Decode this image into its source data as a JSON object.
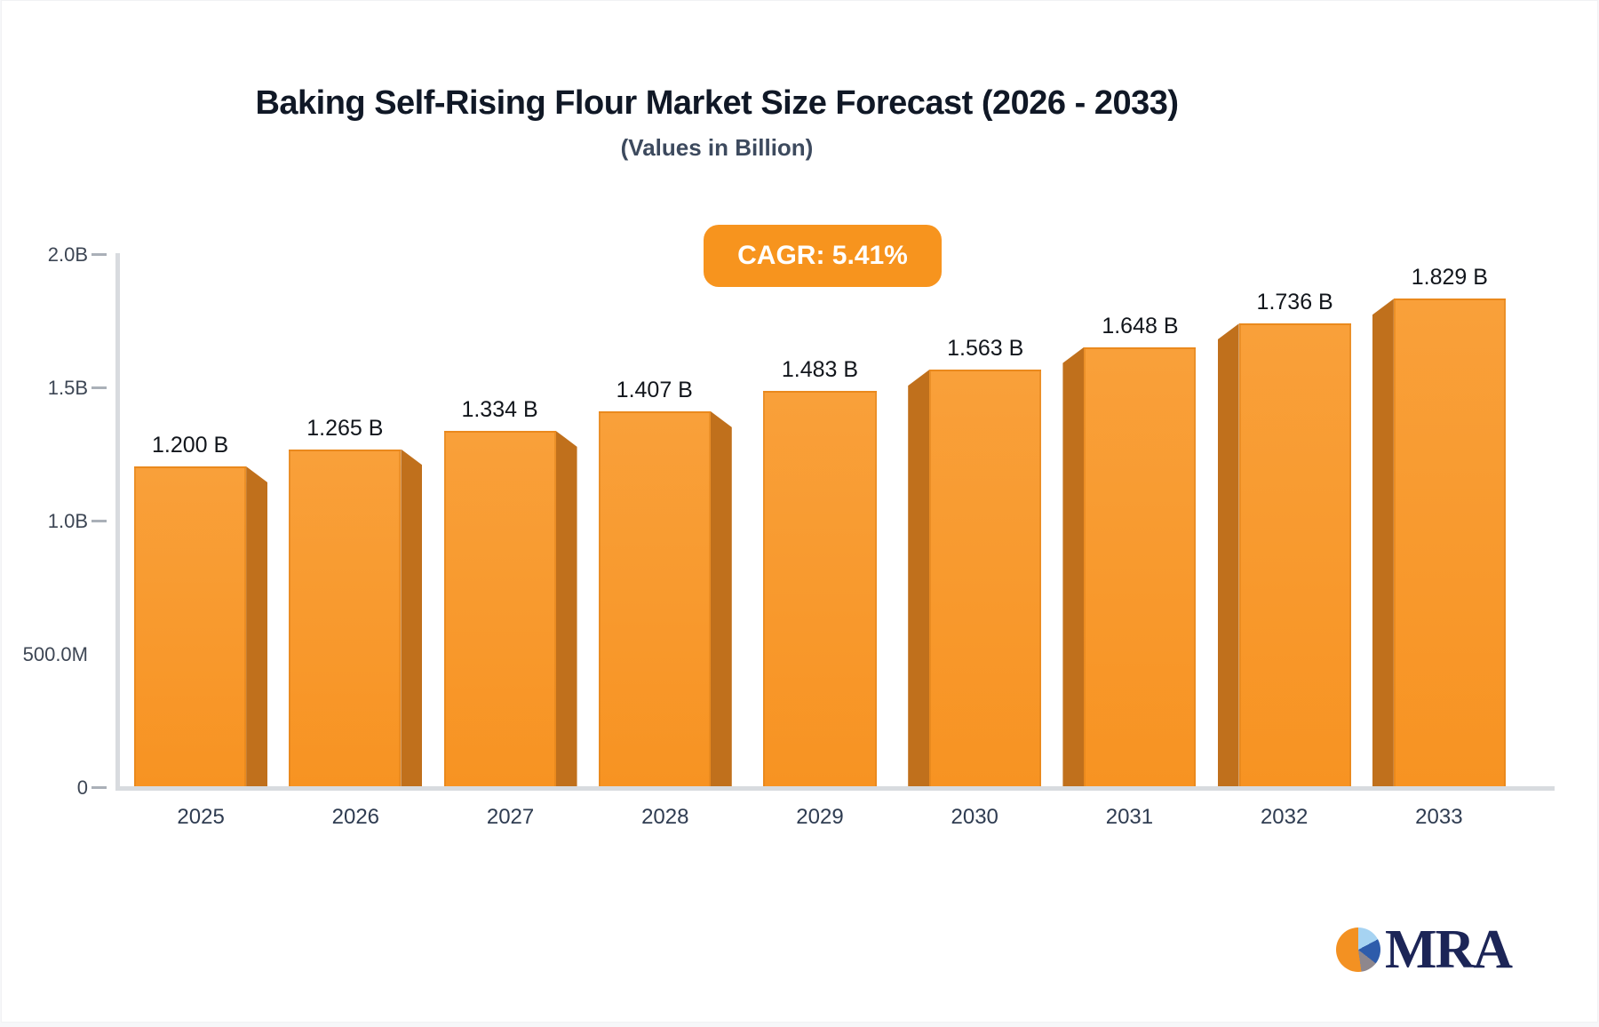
{
  "header": {
    "title": "Baking Self-Rising Flour Market Size Forecast (2026 - 2033)",
    "subtitle": "(Values in Billion)",
    "cagr_badge": "CAGR: 5.41%"
  },
  "chart_data": {
    "type": "bar",
    "title": "Baking Self-Rising Flour Market Size Forecast (2026 - 2033)",
    "subtitle": "(Values in Billion)",
    "cagr_percent": 5.41,
    "categories": [
      "2025",
      "2026",
      "2027",
      "2028",
      "2029",
      "2030",
      "2031",
      "2032",
      "2033"
    ],
    "values": [
      1.2,
      1.265,
      1.334,
      1.407,
      1.483,
      1.563,
      1.648,
      1.736,
      1.829
    ],
    "value_labels": [
      "1.200 B",
      "1.265 B",
      "1.334 B",
      "1.407 B",
      "1.483 B",
      "1.563 B",
      "1.648 B",
      "1.736 B",
      "1.829 B"
    ],
    "xlabel": "",
    "ylabel": "",
    "ylim": [
      0,
      2.0
    ],
    "grid": false,
    "legend": false,
    "y_axis_ticks": [
      {
        "label": "2.0B",
        "value": 2.0,
        "dash": true
      },
      {
        "label": "1.5B",
        "value": 1.5,
        "dash": true
      },
      {
        "label": "1.0B",
        "value": 1.0,
        "dash": true
      },
      {
        "label": "500.0M",
        "value": 0.5,
        "dash": false
      },
      {
        "label": "0",
        "value": 0,
        "dash": true
      }
    ],
    "colors": {
      "bar_face_top": "#f9a03a",
      "bar_face_bottom": "#f79322",
      "bar_side": "#c0701c",
      "badge": "#f7941e",
      "axis_line": "#d8dbdf"
    }
  },
  "logo": {
    "text": "MRA",
    "pie_colors": {
      "orange": "#f39122",
      "light_blue": "#a6d3f2",
      "blue": "#2e5cab",
      "gray": "#8e878d"
    }
  }
}
